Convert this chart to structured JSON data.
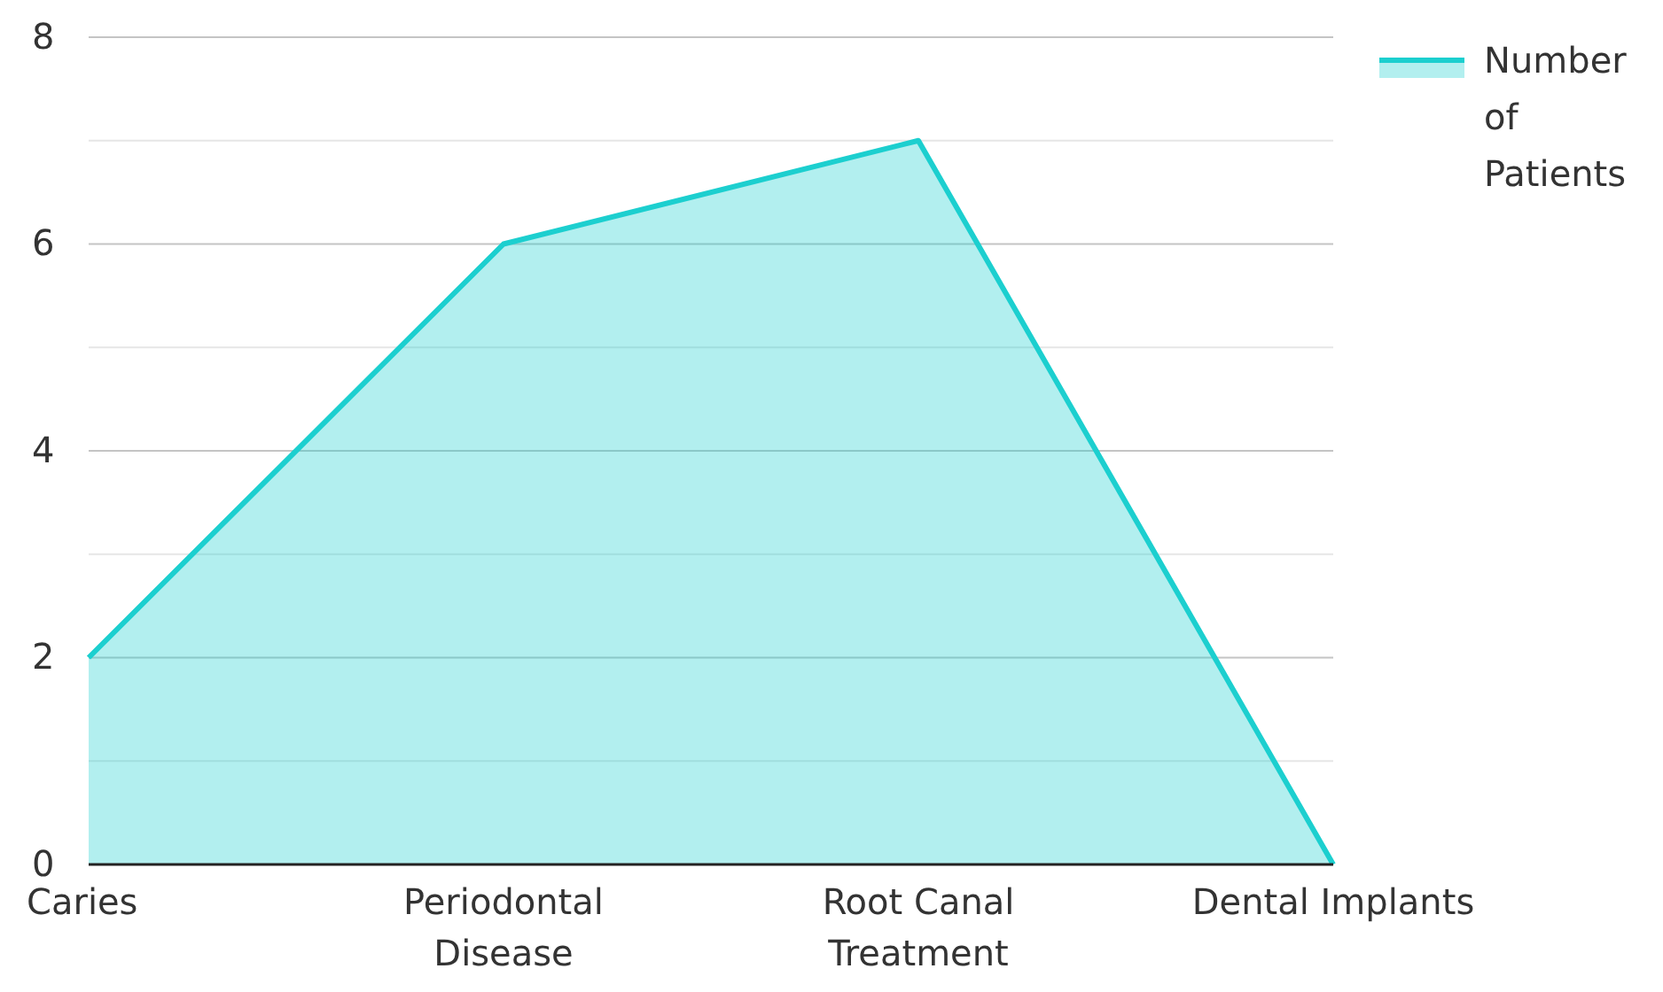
{
  "chart_data": {
    "type": "area",
    "categories": [
      "Caries",
      "Periodontal Disease",
      "Root Canal Treatment",
      "Dental Implants"
    ],
    "series": [
      {
        "name": "Number of Patients",
        "color": "#1ccfcf",
        "values": [
          2,
          6,
          7,
          0
        ]
      }
    ],
    "ylim": [
      0,
      8
    ],
    "yticks": [
      0,
      {
        "value": 1,
        "label": null
      },
      2,
      {
        "value": 3,
        "label": null
      },
      4,
      {
        "value": 5,
        "label": null
      },
      6,
      {
        "value": 7,
        "label": null
      },
      8
    ],
    "grid": "y",
    "legend": "top right"
  }
}
